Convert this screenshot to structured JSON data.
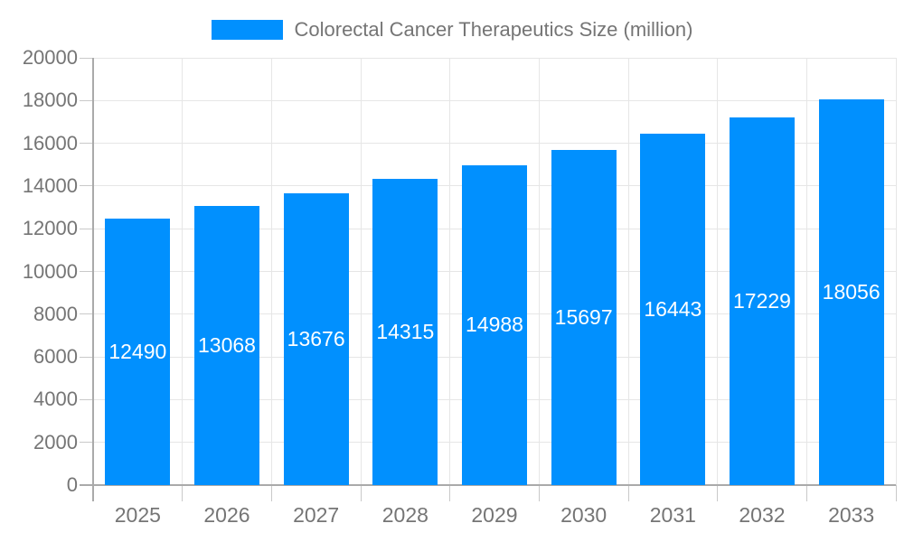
{
  "chart_data": {
    "type": "bar",
    "title": "Colorectal Cancer Therapeutics Size (million)",
    "legend_position": "top",
    "categories": [
      "2025",
      "2026",
      "2027",
      "2028",
      "2029",
      "2030",
      "2031",
      "2032",
      "2033"
    ],
    "series": [
      {
        "name": "Colorectal Cancer Therapeutics Size (million)",
        "values": [
          12490,
          13068,
          13676,
          14315,
          14988,
          15697,
          16443,
          17229,
          18056
        ]
      }
    ],
    "xlabel": "",
    "ylabel": "",
    "ylim": [
      0,
      20000
    ],
    "yticks": [
      0,
      2000,
      4000,
      6000,
      8000,
      10000,
      12000,
      14000,
      16000,
      18000,
      20000
    ],
    "grid": true,
    "value_labels_inside_bars": true,
    "colors": {
      "bar": "#0190FE",
      "bar_value_label": "#ffffff",
      "axis_text": "#757575",
      "legend_text": "#757575",
      "gridline": "#e6e6e6",
      "axis_line": "#aaaaaa",
      "tick": "#c9c9c9",
      "background": "#ffffff"
    }
  }
}
